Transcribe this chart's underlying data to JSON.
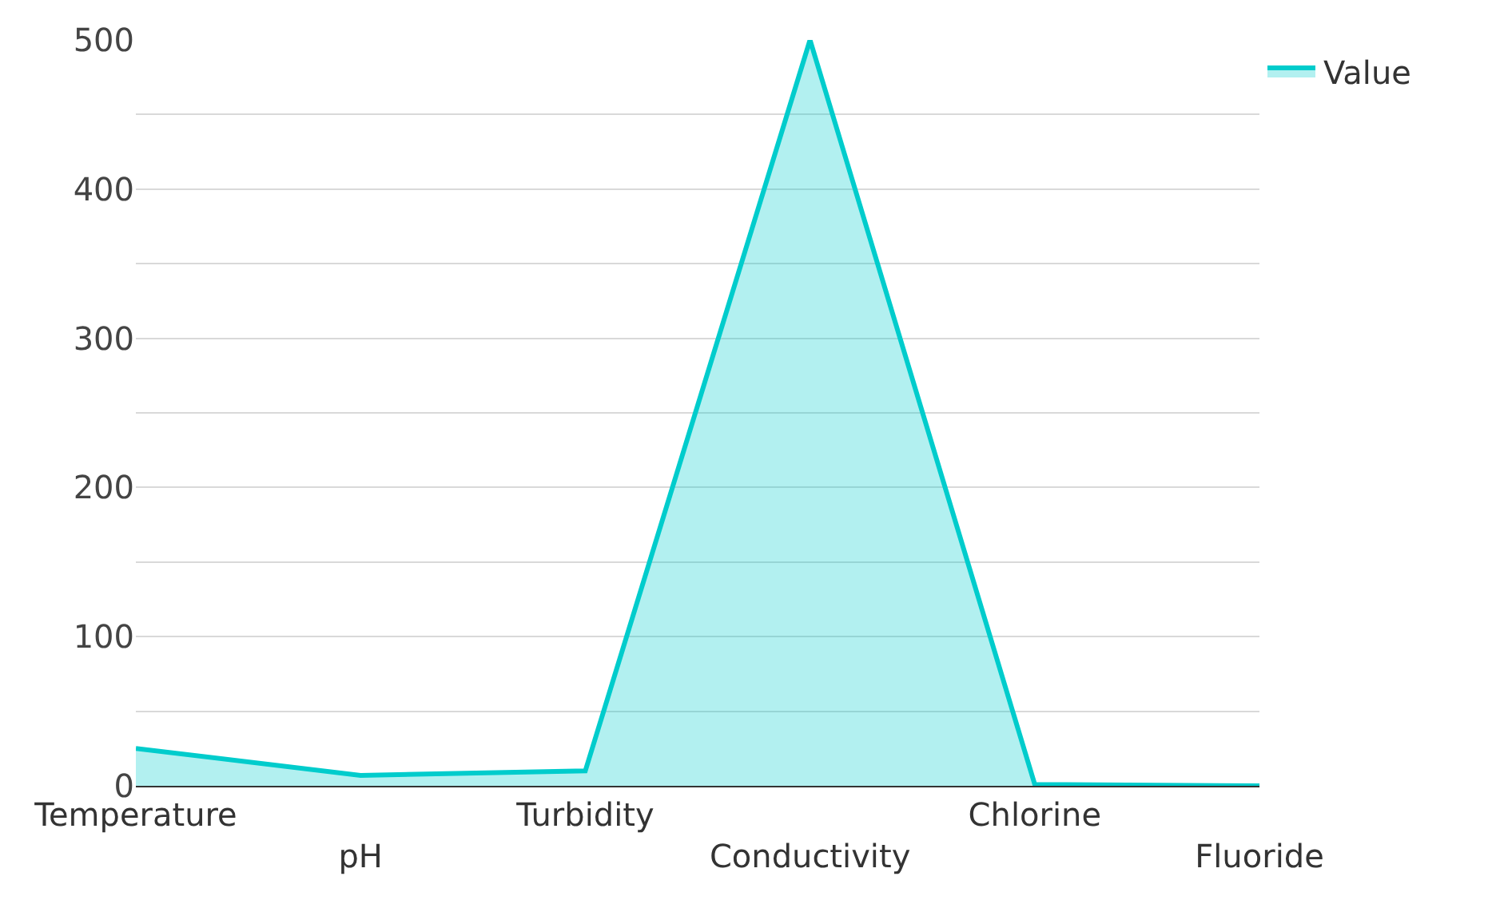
{
  "chart_data": {
    "type": "area",
    "categories": [
      "Temperature",
      "pH",
      "Turbidity",
      "Conductivity",
      "Chlorine",
      "Fluoride"
    ],
    "series": [
      {
        "name": "Value",
        "color": "#00cccc",
        "values": [
          25,
          7,
          10,
          500,
          1,
          0
        ]
      }
    ],
    "ylim": [
      0,
      500
    ],
    "yticks": [
      0,
      {
        "value": 50,
        "label": null
      },
      100,
      {
        "value": 150,
        "label": null
      },
      200,
      {
        "value": 250,
        "label": null
      },
      300,
      {
        "value": 350,
        "label": null
      },
      400,
      {
        "value": 450,
        "label": null
      },
      500
    ],
    "grid": "y",
    "legend": "top right",
    "marker": "none",
    "line_style": "solid"
  }
}
